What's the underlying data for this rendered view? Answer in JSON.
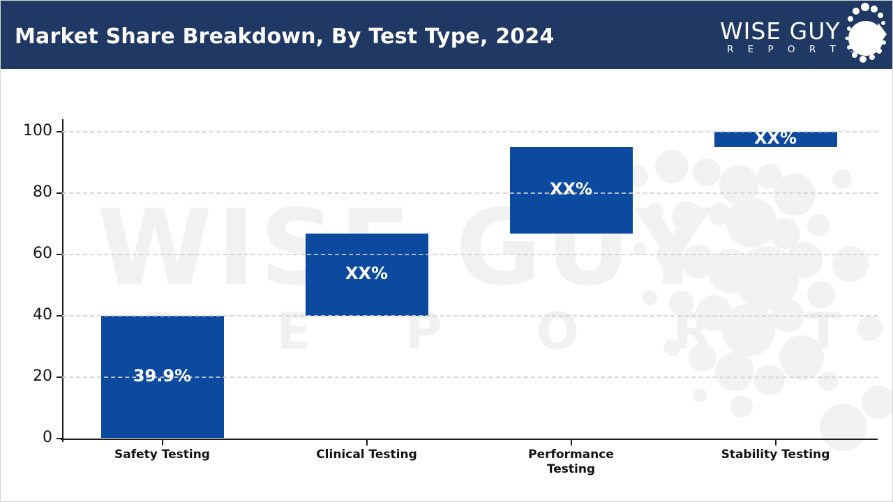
{
  "page": {
    "background": "#ffffff",
    "border_color": "#d6d6d6"
  },
  "header": {
    "title": "Market Share Breakdown, By Test Type, 2024",
    "background": "#1f3864",
    "text_color": "#ffffff",
    "brand": {
      "name": "WISE GUY",
      "subtitle": "R E P O R T S"
    }
  },
  "watermark": {
    "line1": "WISE GUY",
    "line2": "R E P O R T S",
    "color": "#f1f1f1"
  },
  "chart_data": {
    "type": "bar",
    "variant": "waterfall",
    "title": "Market Share Breakdown, By Test Type, 2024",
    "categories": [
      "Safety Testing",
      "Clinical Testing",
      "Performance Testing",
      "Stability Testing"
    ],
    "segments": [
      {
        "category": "Safety Testing",
        "start": 0,
        "end": 39.9,
        "label": "39.9%"
      },
      {
        "category": "Clinical Testing",
        "start": 39.9,
        "end": 66.8,
        "label": "XX%"
      },
      {
        "category": "Performance Testing",
        "start": 66.8,
        "end": 94.8,
        "label": "XX%"
      },
      {
        "category": "Stability Testing",
        "start": 94.8,
        "end": 99.9,
        "label": "XX%"
      }
    ],
    "yticks": [
      0,
      20,
      40,
      60,
      80,
      100
    ],
    "ylim": [
      0,
      105
    ],
    "xlabel": "",
    "ylabel": "",
    "grid": {
      "axis": "y",
      "style": "dashed",
      "color": "#cfcfcf",
      "on_top_of_bars": true
    },
    "bar_color": "#0b4a9f",
    "bar_label_color": "#ffffff",
    "axis_color": "#1a1a1a",
    "legend": "none"
  }
}
